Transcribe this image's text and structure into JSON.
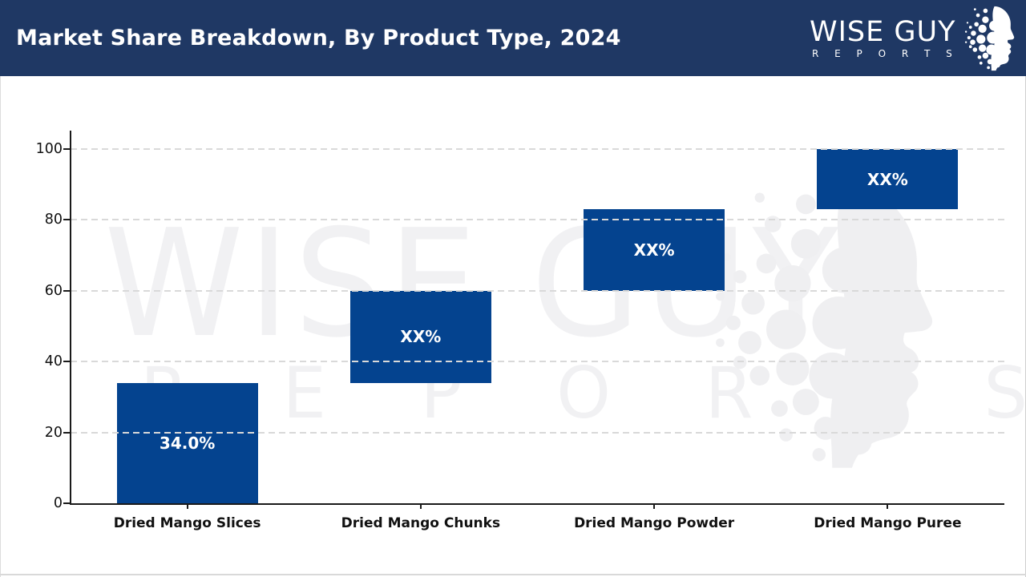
{
  "header": {
    "title": "Market Share Breakdown, By Product Type, 2024",
    "bg_color": "#1f3864",
    "logo": {
      "line1": "WISE GUY",
      "line2": "R E P O R T S"
    }
  },
  "watermark": {
    "line1": "WISE GUY",
    "line2": "R E P O R T S"
  },
  "chart_data": {
    "type": "bar",
    "subtype": "waterfall",
    "title": "Market Share Breakdown, By Product Type, 2024",
    "categories": [
      "Dried Mango Slices",
      "Dried Mango Chunks",
      "Dried Mango Powder",
      "Dried Mango Puree"
    ],
    "segments": [
      {
        "category": "Dried Mango Slices",
        "start": 0,
        "end": 34,
        "label": "34.0%"
      },
      {
        "category": "Dried Mango Chunks",
        "start": 34,
        "end": 60,
        "label": "XX%"
      },
      {
        "category": "Dried Mango Powder",
        "start": 60,
        "end": 83,
        "label": "XX%"
      },
      {
        "category": "Dried Mango Puree",
        "start": 83,
        "end": 100,
        "label": "XX%"
      }
    ],
    "y_ticks": [
      0,
      20,
      40,
      60,
      80,
      100
    ],
    "ylim": [
      0,
      105
    ],
    "xlabel": "",
    "ylabel": "",
    "bar_color": "#04438f",
    "bar_label_color": "#ffffff",
    "grid": "horizontal dashed",
    "grid_color": "#d9d9d9",
    "legend": "none"
  }
}
